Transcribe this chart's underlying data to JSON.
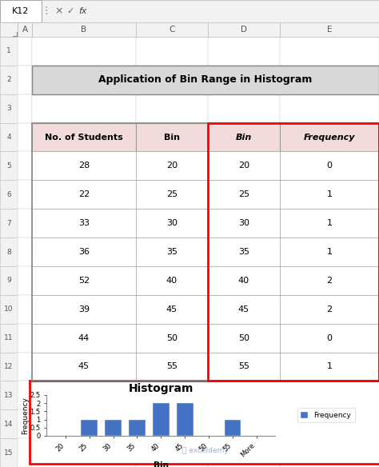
{
  "title": "Application of Bin Range in Histogram",
  "col1_header": "No. of Students",
  "col2_header": "Bin",
  "col3_header": "Bin",
  "col4_header": "Frequency",
  "students": [
    28,
    22,
    33,
    36,
    52,
    39,
    44,
    45
  ],
  "bins_left": [
    20,
    25,
    30,
    35,
    40,
    45,
    50,
    55
  ],
  "bins_right": [
    20,
    25,
    30,
    35,
    40,
    45,
    50,
    55
  ],
  "frequency": [
    0,
    1,
    1,
    1,
    2,
    2,
    0,
    1
  ],
  "freq_chart": [
    0,
    1,
    1,
    1,
    2,
    2,
    0,
    1,
    0
  ],
  "chart_title": "Histogram",
  "chart_xlabel": "Bin",
  "chart_ylabel": "Frequency",
  "chart_xticks": [
    "20",
    "25",
    "30",
    "35",
    "40",
    "45",
    "50",
    "55",
    "More"
  ],
  "bar_color": "#4472C4",
  "legend_label": "Frequency",
  "bg_gray": "#E8E8E8",
  "cell_ref": "K12",
  "formula_bar_bg": "#F2F2F2",
  "col_header_bg": "#F2F2F2",
  "title_cell_bg": "#D9D9D9",
  "table_header_bg": "#F2DCDB",
  "row_number_bg": "#F2F2F2",
  "white": "#FFFFFF",
  "grid_color": "#CCCCCC",
  "border_dark": "#999999",
  "red": "#FF0000",
  "exceldemy_color": "#4472C4",
  "exceldemy_text": "exceldemy"
}
